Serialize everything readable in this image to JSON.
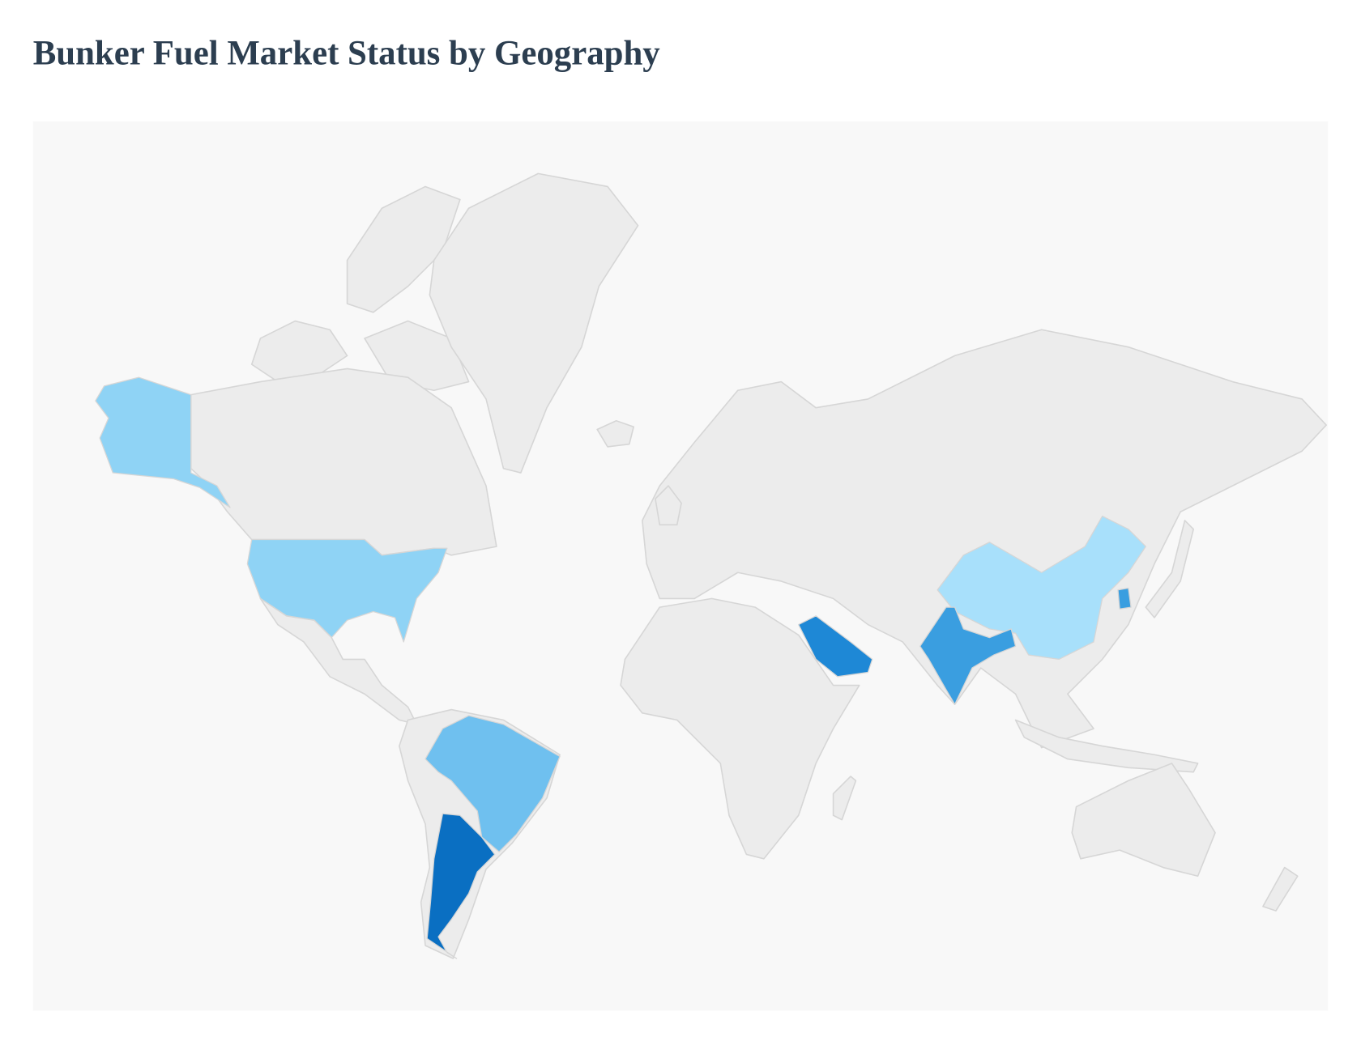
{
  "header": {
    "title": "Bunker Fuel Market Status by Geography"
  }
}
